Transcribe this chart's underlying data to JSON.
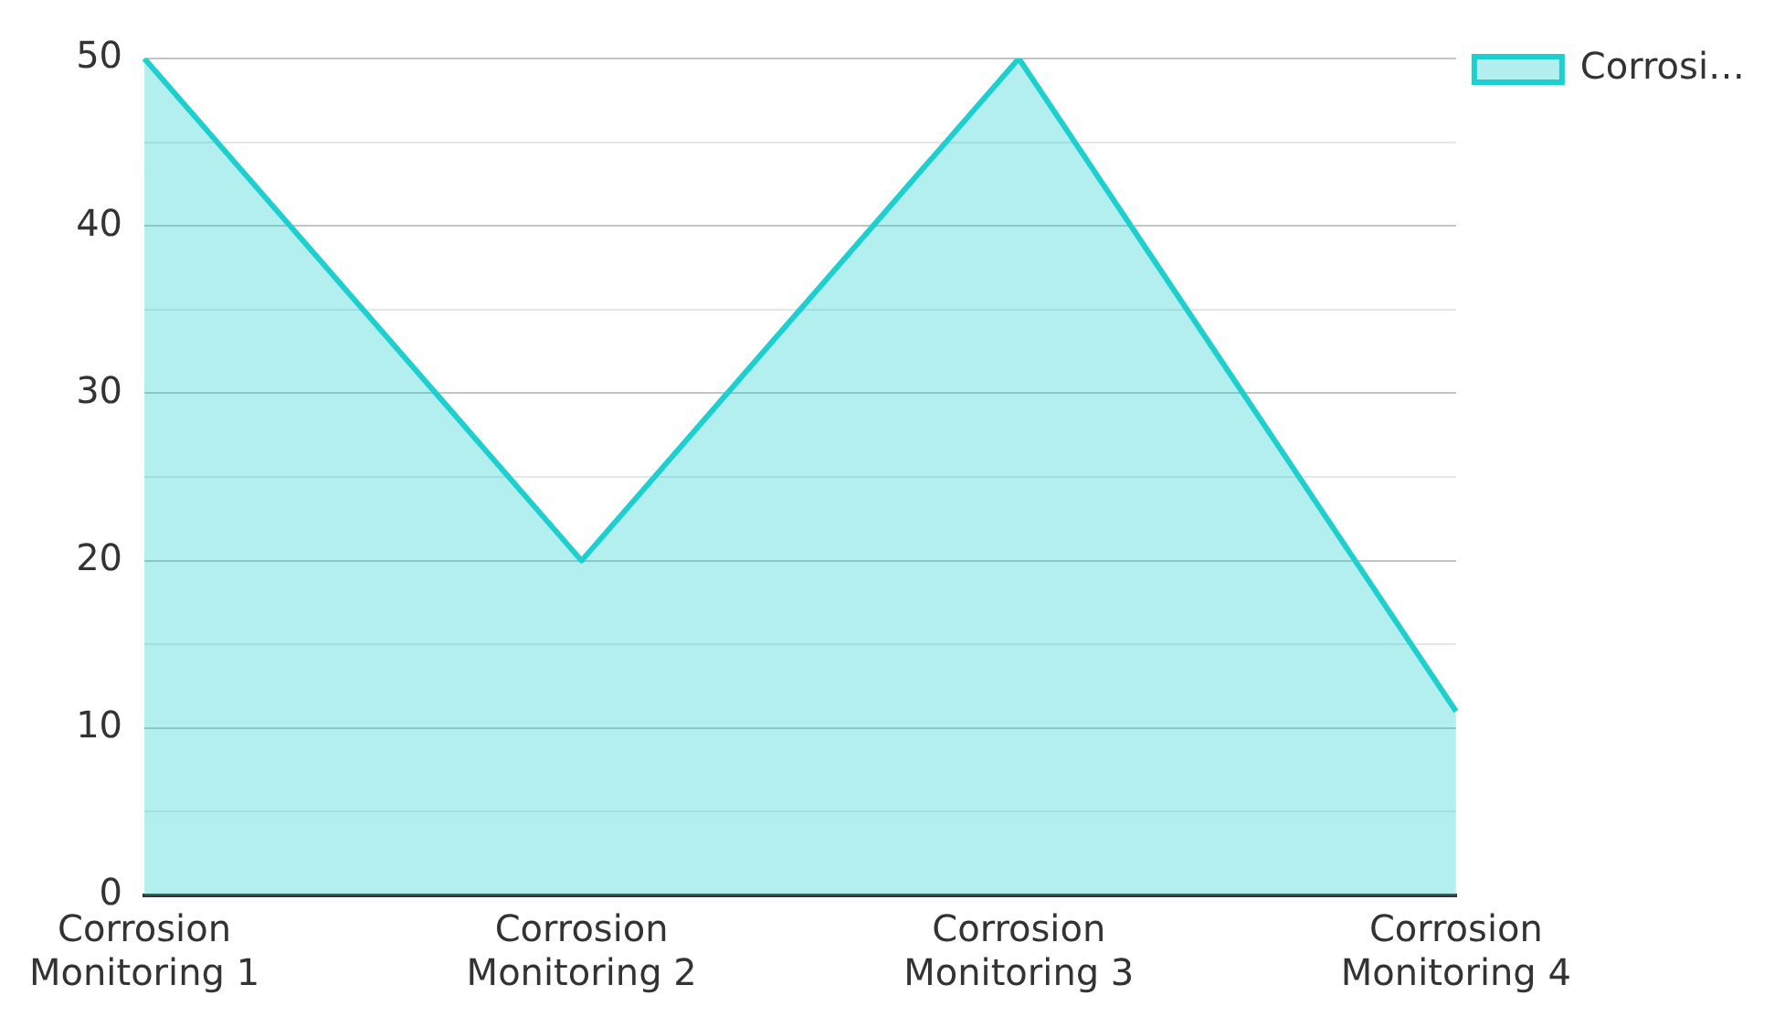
{
  "chart_data": {
    "type": "area",
    "categories": [
      "Corrosion Monitoring 1",
      "Corrosion Monitoring 2",
      "Corrosion Monitoring 3",
      "Corrosion Monitoring 4"
    ],
    "series": [
      {
        "name": "Corrosi…",
        "color": "#1dcfcf",
        "values": [
          50,
          20,
          50,
          11
        ]
      }
    ],
    "ylim": [
      0,
      50
    ],
    "yticks": [
      0,
      {
        "value": 5,
        "label": null
      },
      10,
      {
        "value": 15,
        "label": null
      },
      20,
      {
        "value": 25,
        "label": null
      },
      30,
      {
        "value": 35,
        "label": null
      },
      40,
      {
        "value": 45,
        "label": null
      },
      50
    ],
    "grid": "y",
    "legend": "top right",
    "marker": "none",
    "line_style": "solid"
  }
}
